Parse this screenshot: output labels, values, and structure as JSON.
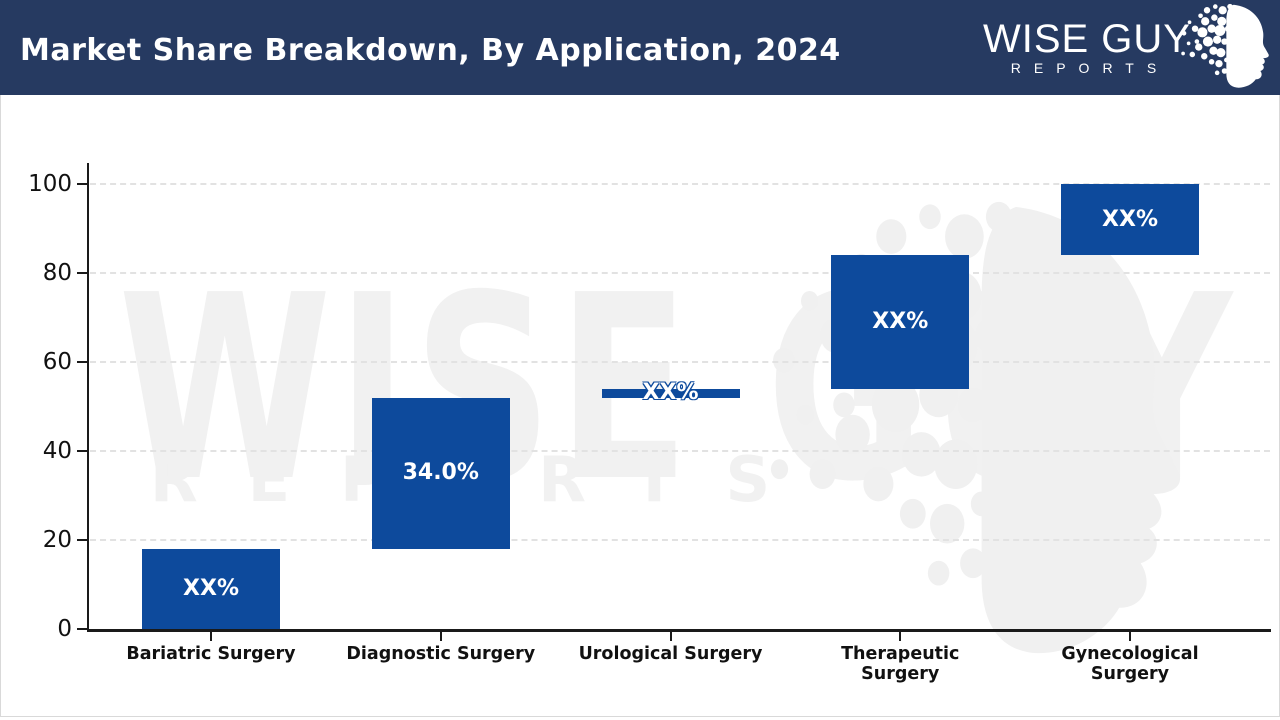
{
  "header": {
    "title": "Market Share Breakdown, By Application, 2024",
    "logo": {
      "line1": "WISE GUY",
      "line2": "REPORTS",
      "icon": "dotted-head-profile-icon"
    }
  },
  "watermark": {
    "line1": "WISE GUY",
    "line2": "REPORTS",
    "icon": "dotted-head-profile-icon"
  },
  "colors": {
    "header_bg": "#263a61",
    "bar": "#0d4a9c",
    "grid": "#e2e2e2",
    "axis_text": "#111111",
    "bar_label_text": "#ffffff",
    "watermark": "#f1f1f1",
    "page_border": "#d9d9d9"
  },
  "chart_data": {
    "type": "bar",
    "subtype": "waterfall-step",
    "title": "Market Share Breakdown, By Application, 2024",
    "categories": [
      "Bariatric Surgery",
      "Diagnostic Surgery",
      "Urological Surgery",
      "Therapeutic\nSurgery",
      "Gynecological\nSurgery"
    ],
    "segments": [
      {
        "start": 0,
        "end": 18
      },
      {
        "start": 18,
        "end": 52
      },
      {
        "start": 52,
        "end": 54
      },
      {
        "start": 54,
        "end": 84
      },
      {
        "start": 84,
        "end": 100
      }
    ],
    "values": [
      18,
      34,
      2,
      30,
      16
    ],
    "bar_labels": [
      "XX%",
      "34.0%",
      "XX%",
      "XX%",
      "XX%"
    ],
    "xlabel": "",
    "ylabel": "",
    "ylim": [
      0,
      100
    ],
    "yticks": [
      0,
      20,
      40,
      60,
      80,
      100
    ],
    "grid": "horizontal-dashed",
    "legend": "none",
    "bar_color": "#0d4a9c"
  }
}
